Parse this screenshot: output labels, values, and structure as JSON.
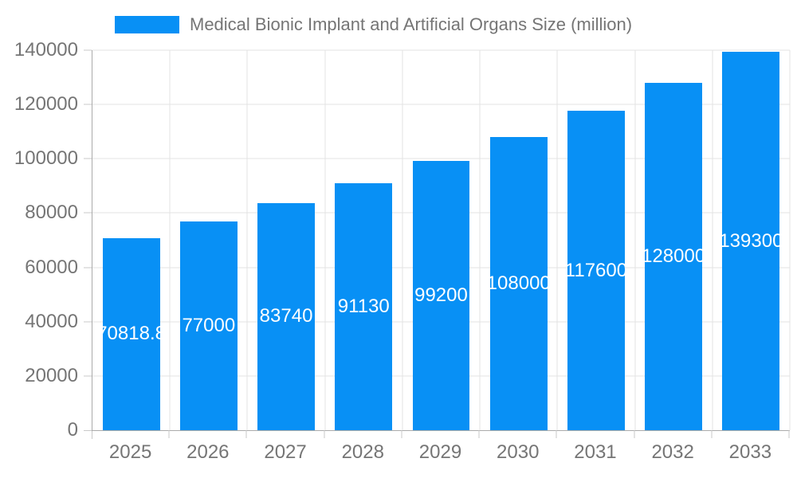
{
  "chart_data": {
    "type": "bar",
    "title": "Medical Bionic Implant and Artificial Organs Size (million)",
    "categories": [
      "2025",
      "2026",
      "2027",
      "2028",
      "2029",
      "2030",
      "2031",
      "2032",
      "2033"
    ],
    "values": [
      70818.8,
      77000,
      83740,
      91130,
      99200,
      108000,
      117600,
      128000,
      139300
    ],
    "bar_labels": [
      "70818.8",
      "77000",
      "83740",
      "91130",
      "99200",
      "108000",
      "117600",
      "128000",
      "139300"
    ],
    "yticks": [
      0,
      20000,
      40000,
      60000,
      80000,
      100000,
      120000,
      140000
    ],
    "ytick_labels": [
      "0",
      "20000",
      "40000",
      "60000",
      "80000",
      "100000",
      "120000",
      "140000"
    ],
    "ylim": [
      0,
      140000
    ],
    "xlabel": "",
    "ylabel": "",
    "grid": true,
    "legend_position": "top",
    "colors": {
      "bar": "#0890F5",
      "label_text": "#FFFFFF",
      "axis_text": "#757575",
      "grid_line": "#E3E3E3",
      "axis_line": "#ABABAB",
      "tick_line": "#C9C9C9",
      "background": "#FFFFFF"
    }
  }
}
